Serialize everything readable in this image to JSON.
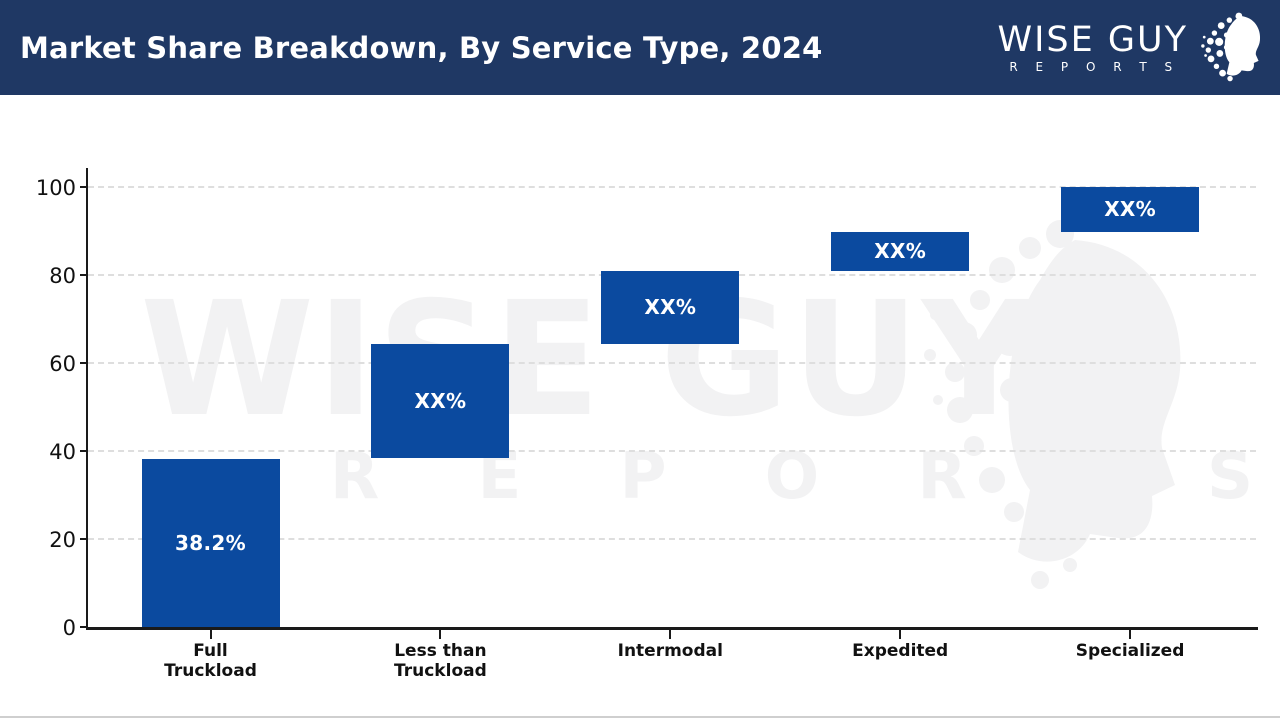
{
  "header": {
    "title": "Market Share Breakdown, By Service Type, 2024",
    "logo_line1": "WISE GUY",
    "logo_line2": "R E P O R T S"
  },
  "watermark": {
    "line1": "WISE GUY",
    "line2": "R E P O R T S"
  },
  "colors": {
    "header_bg": "#1F3864",
    "bar": "#0B4A9F",
    "bar_label": "#FFFFFF",
    "grid": "#DEDEDE",
    "axis": "#1A1A1A",
    "watermark": "#F2F2F3",
    "bottom_rule": "#CFCFCF"
  },
  "chart_data": {
    "type": "bar",
    "subtype": "waterfall",
    "title": "Market Share Breakdown, By Service Type, 2024",
    "xlabel": "",
    "ylabel": "",
    "ylim": [
      0,
      105
    ],
    "yticks": [
      0,
      20,
      40,
      60,
      80,
      100
    ],
    "grid": "horizontal dashed gridlines at 20/40/60/80/100",
    "legend": "none",
    "categories": [
      "Full Truckload",
      "Less than Truckload",
      "Intermodal",
      "Expedited",
      "Specialized"
    ],
    "segments": [
      {
        "category": "Full Truckload",
        "start": 0,
        "end": 38.2,
        "label": "38.2%"
      },
      {
        "category": "Less than Truckload",
        "start": 38.5,
        "end": 64.3,
        "label": "XX%"
      },
      {
        "category": "Intermodal",
        "start": 64.3,
        "end": 81.0,
        "label": "XX%"
      },
      {
        "category": "Expedited",
        "start": 81.0,
        "end": 89.8,
        "label": "XX%"
      },
      {
        "category": "Specialized",
        "start": 89.8,
        "end": 100.0,
        "label": "XX%"
      }
    ]
  }
}
